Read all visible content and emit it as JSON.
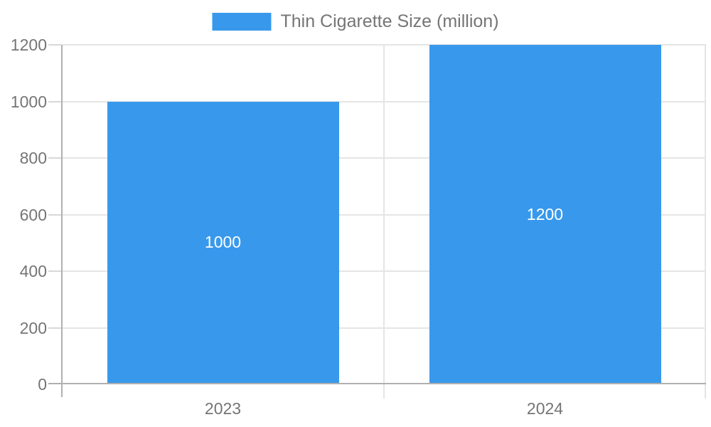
{
  "chart_data": {
    "type": "bar",
    "title": "",
    "legend": "Thin Cigarette Size (million)",
    "legend_position": "top-center",
    "categories": [
      "2023",
      "2024"
    ],
    "series": [
      {
        "name": "Thin Cigarette Size (million)",
        "values": [
          1000,
          1200
        ]
      }
    ],
    "values": [
      1000,
      1200
    ],
    "bar_labels": [
      "1000",
      "1200"
    ],
    "xlabel": "",
    "ylabel": "",
    "ylim": [
      0,
      1200
    ],
    "ytick_values": [
      0,
      200,
      400,
      600,
      800,
      1000,
      1200
    ],
    "ytick_labels": [
      "0",
      "200",
      "400",
      "600",
      "800",
      "1000",
      "1200"
    ],
    "grid": true,
    "colors": {
      "bar": "#3899EC",
      "bar_label": "#FFFFFF",
      "grid": "#E5E5E5",
      "axis": "#B0B0B0",
      "tick_label": "#757575",
      "background": "#FFFFFF"
    }
  }
}
